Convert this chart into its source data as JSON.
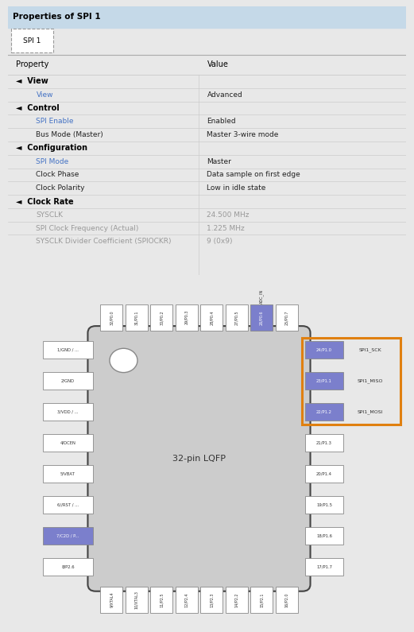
{
  "top_panel": {
    "title": "Properties of SPI 1",
    "tab": "SPI 1",
    "header_property": "Property",
    "header_value": "Value",
    "sections": [
      {
        "name": "View",
        "rows": [
          {
            "property": "View",
            "value": "Advanced",
            "is_link": true,
            "gray": false
          }
        ]
      },
      {
        "name": "Control",
        "rows": [
          {
            "property": "SPI Enable",
            "value": "Enabled",
            "is_link": true,
            "gray": false
          },
          {
            "property": "Bus Mode (Master)",
            "value": "Master 3-wire mode",
            "is_link": false,
            "gray": false
          }
        ]
      },
      {
        "name": "Configuration",
        "rows": [
          {
            "property": "SPI Mode",
            "value": "Master",
            "is_link": true,
            "gray": false
          },
          {
            "property": "Clock Phase",
            "value": "Data sample on first edge",
            "is_link": false,
            "gray": false
          },
          {
            "property": "Clock Polarity",
            "value": "Low in idle state",
            "is_link": false,
            "gray": false
          }
        ]
      },
      {
        "name": "Clock Rate",
        "rows": [
          {
            "property": "SYSCLK",
            "value": "24.500 MHz",
            "is_link": false,
            "gray": true
          },
          {
            "property": "SPI Clock Frequency (Actual)",
            "value": "1.225 MHz",
            "is_link": false,
            "gray": true
          },
          {
            "property": "SYSCLK Divider Coefficient (SPIOCKR)",
            "value": "9 (0x9)",
            "is_link": false,
            "gray": true
          }
        ]
      }
    ],
    "title_bg": "#C5D9E8",
    "tab_bg": "#EEEEEE",
    "header_bg": "#FFFFFF",
    "row_line_color": "#CCCCCC",
    "section_arrow": "◄",
    "link_color": "#4472C4",
    "gray_color": "#999999",
    "black_color": "#222222"
  },
  "bottom_panel": {
    "chip_label": "32-pin LQFP",
    "top_pins": [
      {
        "label": "32/P0.0",
        "highlight": false
      },
      {
        "label": "31/P0.1",
        "highlight": false
      },
      {
        "label": "30/P0.2",
        "highlight": false
      },
      {
        "label": "29/P0.3",
        "highlight": false
      },
      {
        "label": "28/P0.4",
        "highlight": false
      },
      {
        "label": "27/P0.5",
        "highlight": false
      },
      {
        "label": "26/P0.6",
        "highlight": true
      },
      {
        "label": "25/P0.7",
        "highlight": false
      }
    ],
    "adc_label": "ADC_IN",
    "adc_pin_idx": 6,
    "bottom_pins": [
      {
        "label": "9/XTAL4",
        "highlight": false
      },
      {
        "label": "10/XTAL3",
        "highlight": false
      },
      {
        "label": "11/P2.5",
        "highlight": false
      },
      {
        "label": "12/P2.4",
        "highlight": false
      },
      {
        "label": "13/P2.3",
        "highlight": false
      },
      {
        "label": "14/P2.2",
        "highlight": false
      },
      {
        "label": "15/P2.1",
        "highlight": false
      },
      {
        "label": "16/P2.0",
        "highlight": false
      }
    ],
    "left_pins": [
      {
        "label": "1/GND / ...",
        "highlight": false
      },
      {
        "label": "2/GND",
        "highlight": false
      },
      {
        "label": "3/VDD / ...",
        "highlight": false
      },
      {
        "label": "4/DCEN",
        "highlight": false
      },
      {
        "label": "5/VBAT",
        "highlight": false
      },
      {
        "label": "6//RST / ...",
        "highlight": false
      },
      {
        "label": "7/C2D / P...",
        "highlight": true
      },
      {
        "label": "8/P2.6",
        "highlight": false
      }
    ],
    "right_pins": [
      {
        "label": "24/P1.0",
        "highlight": true,
        "spi_label": "SPI1_SCK"
      },
      {
        "label": "23/P1.1",
        "highlight": true,
        "spi_label": "SPI1_MISO"
      },
      {
        "label": "22/P1.2",
        "highlight": true,
        "spi_label": "SPI1_MOSI"
      },
      {
        "label": "21/P1.3",
        "highlight": false,
        "spi_label": ""
      },
      {
        "label": "20/P1.4",
        "highlight": false,
        "spi_label": ""
      },
      {
        "label": "19/P1.5",
        "highlight": false,
        "spi_label": ""
      },
      {
        "label": "18/P1.6",
        "highlight": false,
        "spi_label": ""
      },
      {
        "label": "17/P1.7",
        "highlight": false,
        "spi_label": ""
      }
    ],
    "highlight_color": "#7B7FCC",
    "chip_bg": "#CCCCCC",
    "orange_box_color": "#E08010",
    "pin_text_color": "#333333",
    "pin_border_color": "#888888"
  }
}
